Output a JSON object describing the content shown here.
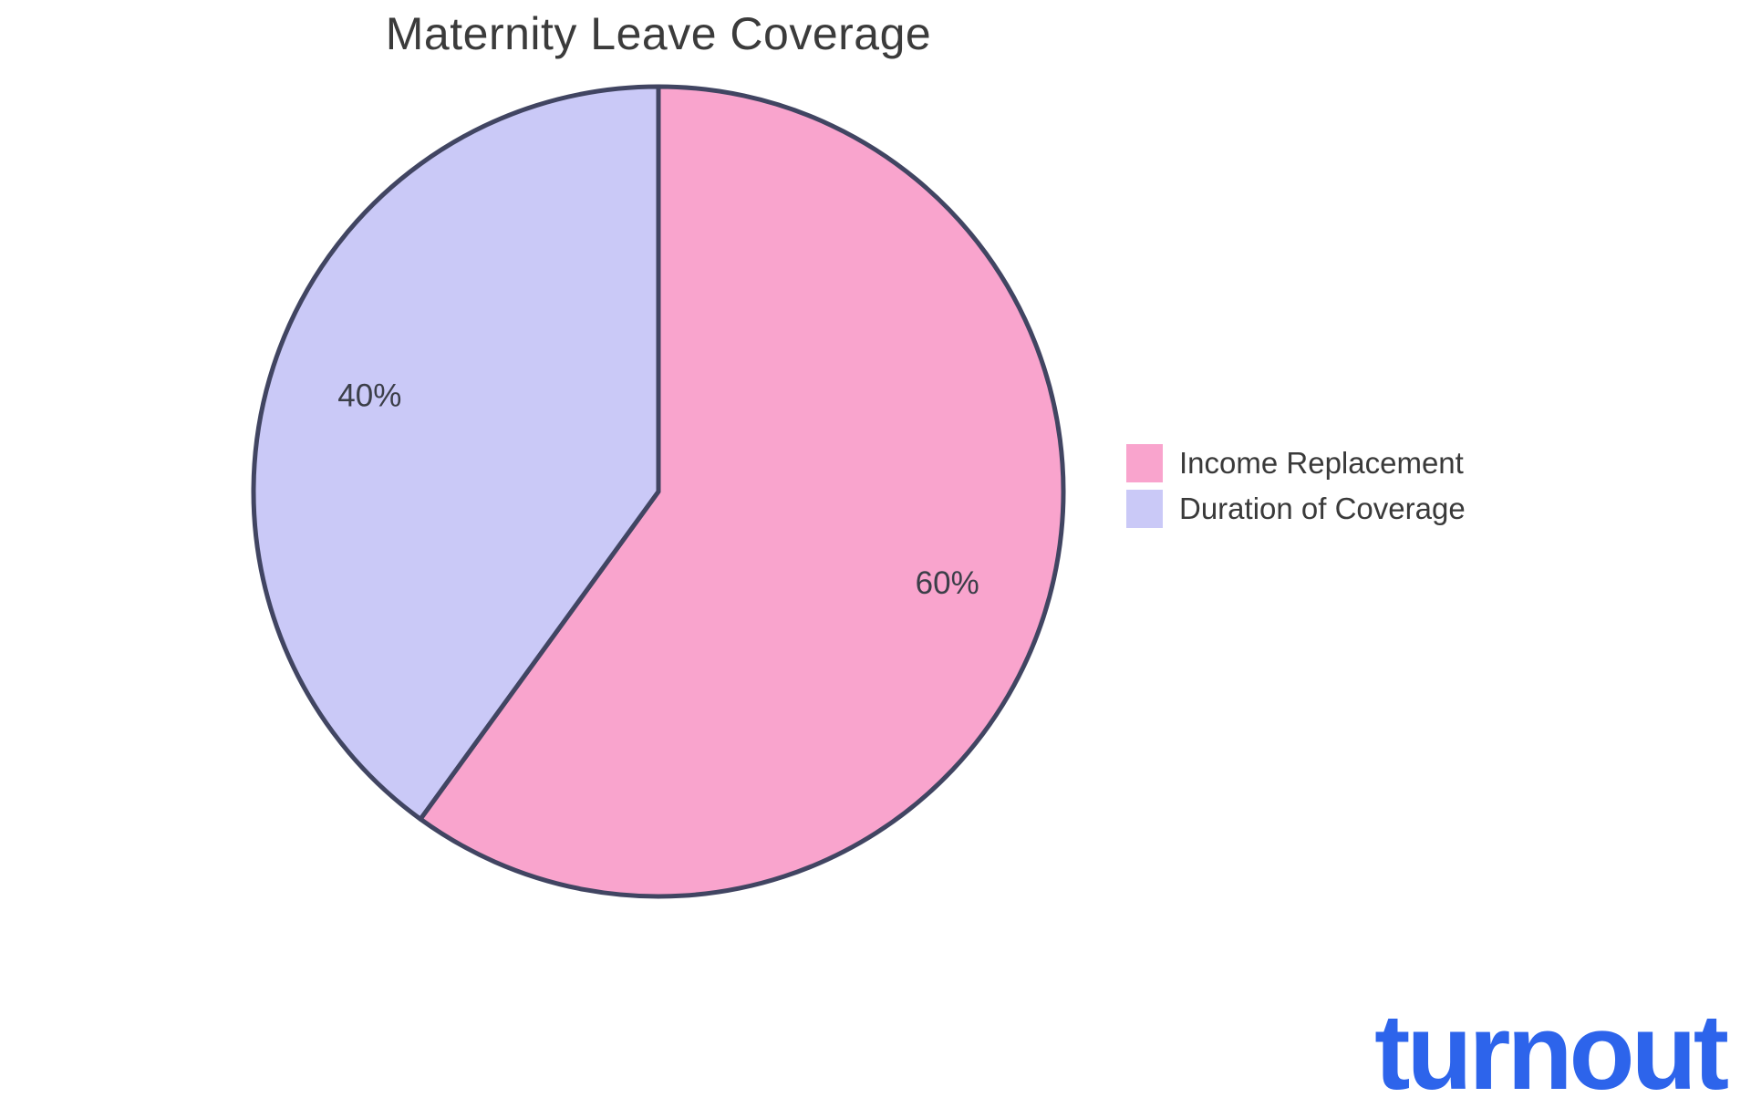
{
  "chart_data": {
    "type": "pie",
    "title": "Maternity Leave Coverage",
    "slices": [
      {
        "name": "Income Replacement",
        "value": 60,
        "pct_label": "60%",
        "color": "#F9A4CD"
      },
      {
        "name": "Duration of Coverage",
        "value": 40,
        "pct_label": "40%",
        "color": "#CAC9F7"
      }
    ],
    "start_angle_deg": 0,
    "direction": "clockwise",
    "outline_color": "#414562",
    "outline_width": 5,
    "label_radius_ratio": 0.75,
    "legend_position": "right",
    "text_color": "#3b3e48"
  },
  "footer": {
    "brand": "turnout",
    "brand_color": "#2d64eb"
  }
}
